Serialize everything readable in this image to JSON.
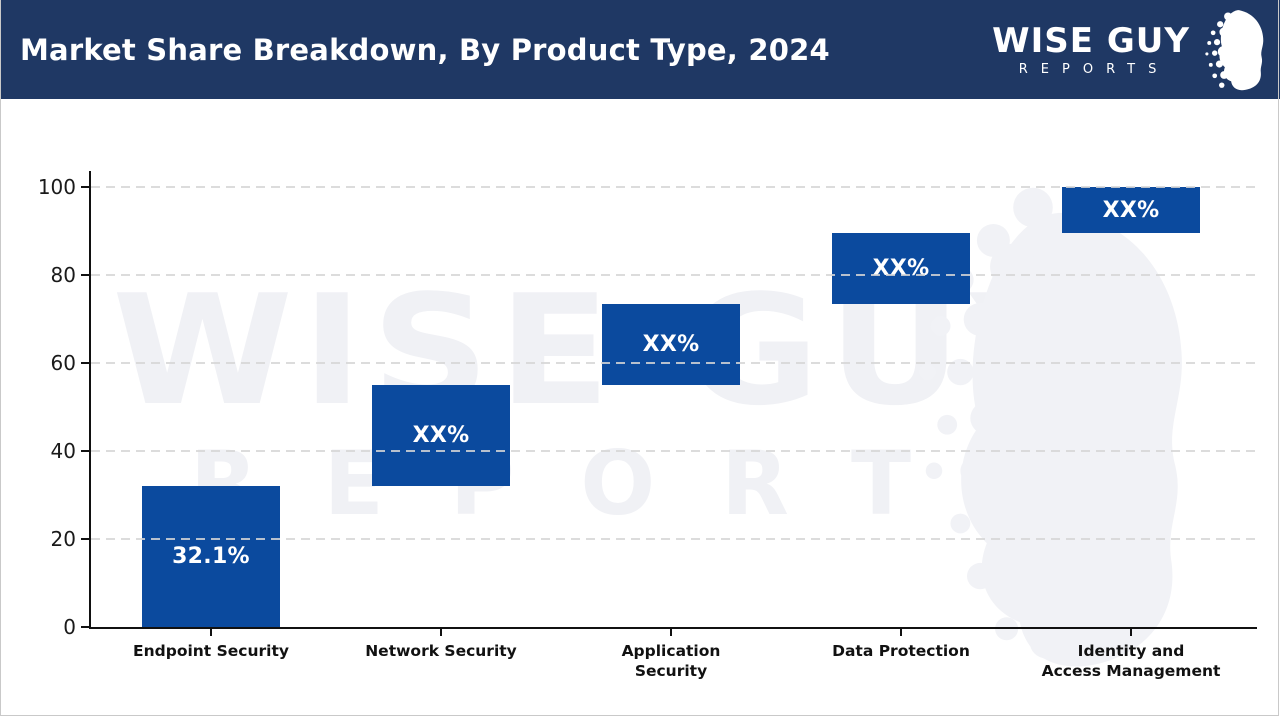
{
  "header": {
    "title": "Market Share Breakdown, By Product Type, 2024",
    "bg_color": "#1f3864",
    "logo": {
      "name": "WISE GUY",
      "sub": "REPORTS"
    }
  },
  "watermark": {
    "line1": "WISE GUY",
    "line2": "REPORTS"
  },
  "chart_data": {
    "type": "bar",
    "variant": "waterfall",
    "title": "Market Share Breakdown, By Product Type, 2024",
    "categories": [
      "Endpoint Security",
      "Network Security",
      "Application Security",
      "Data Protection",
      "Identity and Access Management"
    ],
    "category_lines": [
      [
        "Endpoint Security"
      ],
      [
        "Network Security"
      ],
      [
        "Application",
        "Security"
      ],
      [
        "Data Protection"
      ],
      [
        "Identity and",
        "Access Management"
      ]
    ],
    "segments": [
      {
        "start": 0,
        "end": 32.1
      },
      {
        "start": 32.1,
        "end": 55
      },
      {
        "start": 55,
        "end": 73.5
      },
      {
        "start": 73.5,
        "end": 89.5
      },
      {
        "start": 89.5,
        "end": 100
      }
    ],
    "bar_labels": [
      "32.1%",
      "XX%",
      "XX%",
      "XX%",
      "XX%"
    ],
    "yticks": [
      0,
      20,
      40,
      60,
      80,
      100
    ],
    "ylim": [
      0,
      105
    ],
    "xlabel": "",
    "ylabel": "",
    "bar_color": "#0b4a9e",
    "grid": {
      "axis": "y",
      "style": "dashed",
      "color": "#d6d6d6"
    },
    "legend": "none"
  }
}
